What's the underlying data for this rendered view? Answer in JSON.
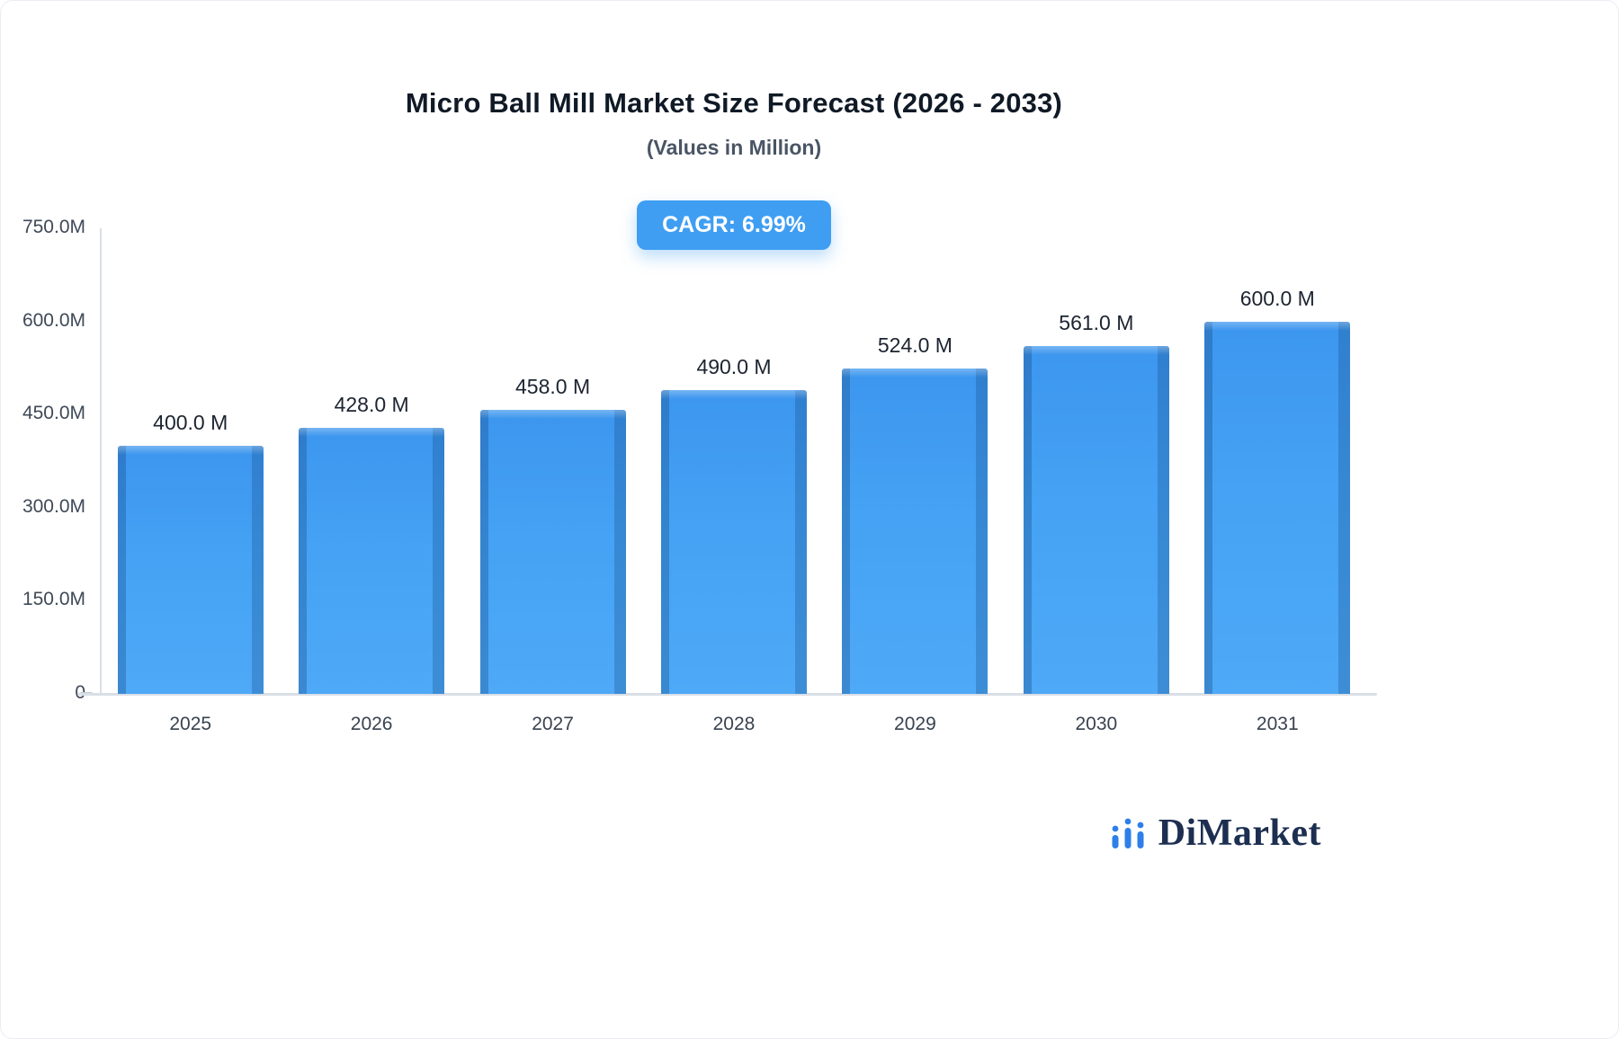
{
  "chart_data": {
    "type": "bar",
    "title": "Micro Ball Mill Market Size Forecast (2026 - 2033)",
    "subtitle": "(Values in Million)",
    "cagr_label": "CAGR: 6.99%",
    "categories": [
      "2025",
      "2026",
      "2027",
      "2028",
      "2029",
      "2030",
      "2031"
    ],
    "values": [
      400,
      428,
      458,
      490,
      524,
      561,
      600
    ],
    "value_labels": [
      "400.0 M",
      "428.0 M",
      "458.0 M",
      "490.0 M",
      "524.0 M",
      "561.0 M",
      "600.0 M"
    ],
    "ylim": [
      0,
      750
    ],
    "y_ticks": [
      {
        "label": "750.0M",
        "value": 750
      },
      {
        "label": "600.0M",
        "value": 600
      },
      {
        "label": "450.0M",
        "value": 450
      },
      {
        "label": "300.0M",
        "value": 300
      },
      {
        "label": "150.0M",
        "value": 150
      },
      {
        "label": "0",
        "value": 0
      }
    ],
    "bar_color": "#45a2f4",
    "bar_edge_color": "#2b7fd2",
    "badge_color": "#3f9ef2",
    "grid": false,
    "legend_position": "none"
  },
  "logo": {
    "text": "DiMarket",
    "text_color": "#1d2f50",
    "icon": "bar-chart-icon",
    "icon_color": "#2e7fe8"
  }
}
